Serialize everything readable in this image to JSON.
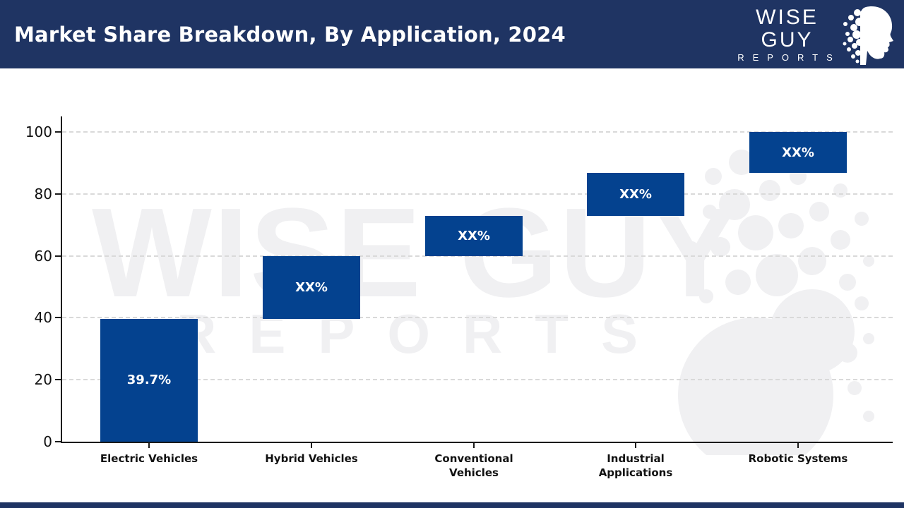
{
  "header": {
    "title": "Market Share Breakdown, By Application, 2024",
    "bg_color": "#1f3463",
    "logo": {
      "line1": "WISE GUY",
      "line2": "REPORTS"
    }
  },
  "watermark": {
    "line1": "WISE GUY",
    "line2": "REPORTS"
  },
  "chart_data": {
    "type": "bar",
    "subtype": "waterfall",
    "title": "Market Share Breakdown, By Application, 2024",
    "categories": [
      "Electric Vehicles",
      "Hybrid Vehicles",
      "Conventional Vehicles",
      "Industrial Applications",
      "Robotic Systems"
    ],
    "segments": [
      {
        "category": "Electric Vehicles",
        "start": 0,
        "end": 39.7,
        "label": "39.7%"
      },
      {
        "category": "Hybrid Vehicles",
        "start": 39.7,
        "end": 60.0,
        "label": "XX%"
      },
      {
        "category": "Conventional Vehicles",
        "start": 60.0,
        "end": 72.8,
        "label": "XX%"
      },
      {
        "category": "Industrial Applications",
        "start": 72.8,
        "end": 86.7,
        "label": "XX%"
      },
      {
        "category": "Robotic Systems",
        "start": 86.7,
        "end": 100,
        "label": "XX%"
      }
    ],
    "y_ticks": [
      0,
      20,
      40,
      60,
      80,
      100
    ],
    "ylim": [
      0,
      105
    ],
    "xlabel": "",
    "ylabel": "",
    "bar_color": "#04428f",
    "grid": "dashed-horizontal",
    "grid_color": "#d9d9d9",
    "legend": "none"
  },
  "footer": {
    "bg_color": "#1f3463"
  }
}
